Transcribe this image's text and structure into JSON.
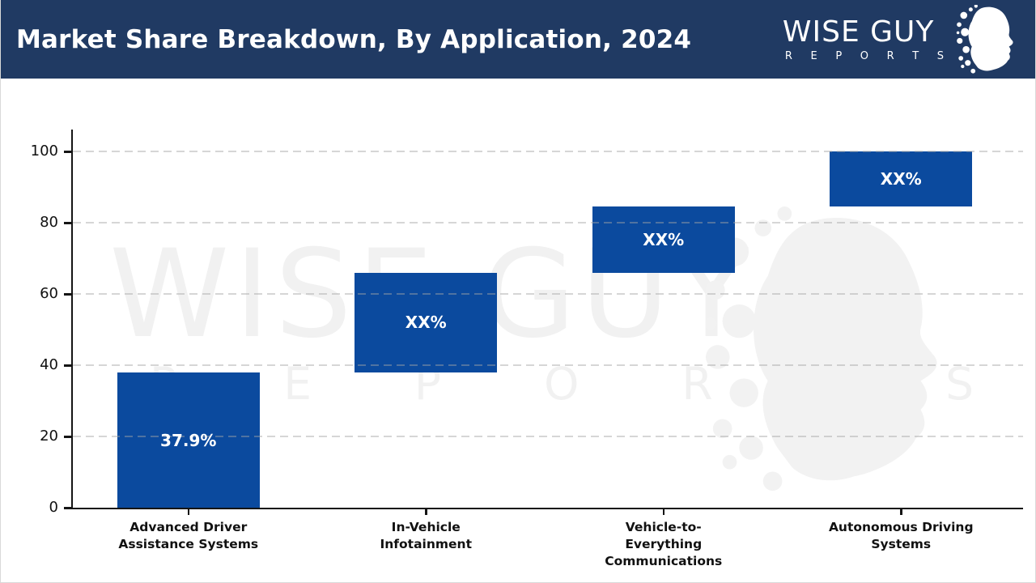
{
  "header": {
    "title": "Market Share Breakdown, By Application, 2024",
    "bg_color": "#203a63",
    "logo": {
      "line1": "WISE GUY",
      "line2": "REPORTS"
    }
  },
  "watermark": {
    "line1": "WISE GUY",
    "line2": "REPORTS"
  },
  "chart_data": {
    "type": "bar",
    "subtype": "floating-segment-breakdown",
    "title": "Market Share Breakdown, By Application, 2024",
    "categories": [
      "Advanced Driver Assistance Systems",
      "In-Vehicle Infotainment",
      "Vehicle-to-Everything Communications",
      "Autonomous Driving Systems"
    ],
    "category_lines": [
      [
        "Advanced Driver",
        "Assistance Systems"
      ],
      [
        "In-Vehicle",
        "Infotainment"
      ],
      [
        "Vehicle-to-",
        "Everything",
        "Communications"
      ],
      [
        "Autonomous Driving",
        "Systems"
      ]
    ],
    "segments": [
      {
        "start": 0,
        "end": 37.9
      },
      {
        "start": 37.9,
        "end": 66
      },
      {
        "start": 66,
        "end": 84.5
      },
      {
        "start": 84.5,
        "end": 100
      }
    ],
    "segment_values_estimated": [
      37.9,
      28.1,
      18.5,
      15.5
    ],
    "bar_labels": [
      "37.9%",
      "XX%",
      "XX%",
      "XX%"
    ],
    "yticks": [
      0,
      20,
      40,
      60,
      80,
      100
    ],
    "ylim": [
      0,
      106
    ],
    "xlabel": "",
    "ylabel": "",
    "grid": "horizontal-dashed",
    "legend": "none",
    "bar_color": "#0b4a9e",
    "bar_label_color": "#ffffff",
    "axis_color": "#151515",
    "grid_color": "#d9d9d9"
  }
}
